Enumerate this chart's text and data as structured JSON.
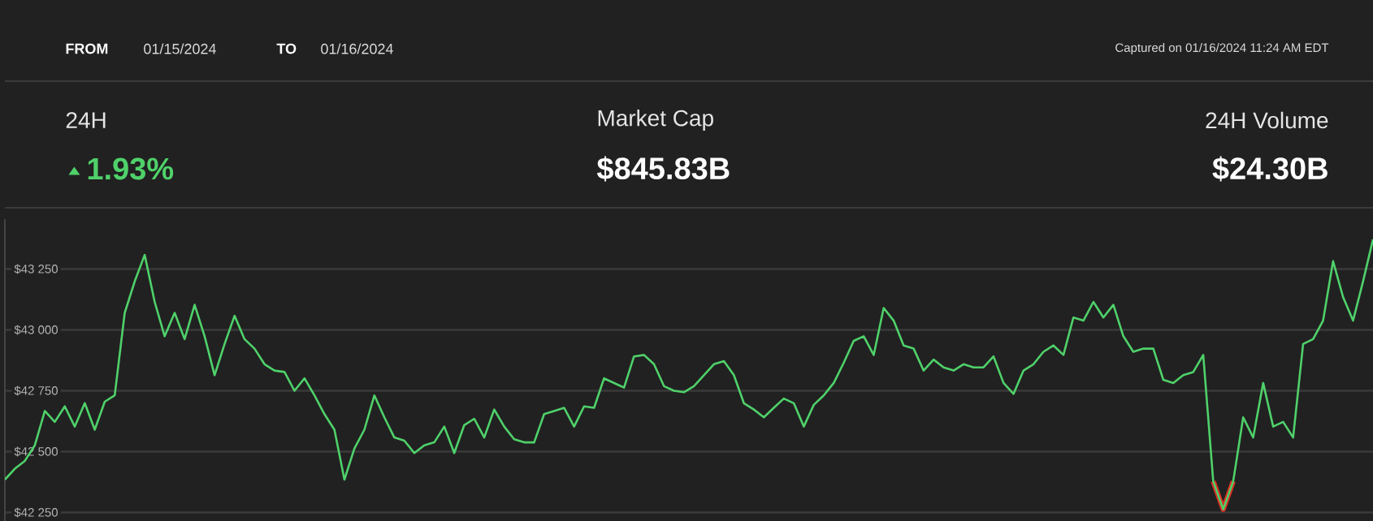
{
  "chart_data": {
    "type": "line",
    "annotations": [
      "FROM",
      "01/15/2024",
      "TO",
      "01/16/2024",
      "Captured on 01/16/2024 11:24 AM EDT",
      "24H",
      "1.93%",
      "Market Cap",
      "$845.83B",
      "24H Volume",
      "$24.30B"
    ],
    "categories": [
      null,
      null,
      null,
      null,
      null,
      null,
      null,
      null,
      null,
      null,
      null,
      null,
      null,
      null,
      null,
      null,
      null,
      null,
      null,
      null,
      null,
      null,
      null,
      null,
      null,
      null,
      null,
      null,
      null,
      null,
      null,
      null,
      null,
      null,
      null,
      null,
      null,
      null,
      null,
      null,
      null,
      null,
      null,
      null,
      null,
      null,
      null,
      null,
      null,
      null,
      null,
      null,
      null,
      null,
      null,
      null,
      null,
      null,
      null,
      null,
      null,
      null,
      null,
      null,
      null,
      null,
      null,
      null,
      null,
      null,
      null,
      null,
      null,
      null,
      null,
      null,
      null,
      null,
      null,
      null,
      null,
      null,
      null,
      null,
      null,
      null,
      null,
      null,
      null,
      null,
      null,
      null,
      null,
      null,
      null,
      null,
      null,
      null,
      null,
      null,
      null,
      null,
      null,
      null,
      null,
      null,
      null,
      null,
      null,
      null,
      null,
      null,
      null,
      null,
      null,
      null,
      null,
      null,
      null,
      null,
      null,
      null,
      null,
      null,
      null,
      null,
      null,
      null,
      null,
      null,
      null,
      null,
      null,
      null,
      null,
      null,
      null,
      null
    ],
    "ylim": [
      42215,
      43455
    ],
    "yticks": [
      {
        "value": 42250,
        "label": "$42 250"
      },
      {
        "value": 42500,
        "label": "$42 500"
      },
      {
        "value": 42750,
        "label": "$42 750"
      },
      {
        "value": 43000,
        "label": "$43 000"
      },
      {
        "value": 43250,
        "label": "$43 250"
      }
    ],
    "grid": "y",
    "tick_labels": "y",
    "series": [
      {
        "color": "#4fd16a",
        "values": [
          42385,
          42430,
          42462,
          42526,
          42667,
          42622,
          42686,
          42603,
          42699,
          42590,
          42705,
          42731,
          43070,
          43199,
          43308,
          43115,
          42974,
          43070,
          42962,
          43103,
          42974,
          42814,
          42942,
          43058,
          42962,
          42923,
          42859,
          42833,
          42827,
          42750,
          42801,
          42731,
          42654,
          42590,
          42385,
          42513,
          42590,
          42731,
          42641,
          42558,
          42545,
          42494,
          42526,
          42538,
          42603,
          42494,
          42609,
          42635,
          42558,
          42673,
          42603,
          42551,
          42538,
          42538,
          42654,
          42667,
          42680,
          42603,
          42686,
          42680,
          42801,
          42782,
          42763,
          42891,
          42897,
          42859,
          42769,
          42750,
          42744,
          42769,
          42814,
          42859,
          42872,
          42814,
          42699,
          42673,
          42641,
          42680,
          42718,
          42699,
          42603,
          42692,
          42731,
          42782,
          42865,
          42955,
          42974,
          42897,
          43090,
          43038,
          42936,
          42923,
          42833,
          42878,
          42846,
          42833,
          42859,
          42846,
          42846,
          42891,
          42782,
          42737,
          42833,
          42859,
          42910,
          42936,
          42897,
          43051,
          43038,
          43115,
          43051,
          43103,
          42974,
          42910,
          42923,
          42923,
          42795,
          42782,
          42814,
          42827,
          42897,
          42378,
          42263,
          42378,
          42641,
          42558,
          42782,
          42603,
          42622,
          42558,
          42942,
          42962,
          43038,
          43282,
          43135,
          43038,
          43199,
          43372
        ]
      },
      {
        "color": "#d93025",
        "values": [
          null,
          null,
          null,
          null,
          null,
          null,
          null,
          null,
          null,
          null,
          null,
          null,
          null,
          null,
          null,
          null,
          null,
          null,
          null,
          null,
          null,
          null,
          null,
          null,
          null,
          null,
          null,
          null,
          null,
          null,
          null,
          null,
          null,
          null,
          null,
          null,
          null,
          null,
          null,
          null,
          null,
          null,
          null,
          null,
          null,
          null,
          null,
          null,
          null,
          null,
          null,
          null,
          null,
          null,
          null,
          null,
          null,
          null,
          null,
          null,
          null,
          null,
          null,
          null,
          null,
          null,
          null,
          null,
          null,
          null,
          null,
          null,
          null,
          null,
          null,
          null,
          null,
          null,
          null,
          null,
          null,
          null,
          null,
          null,
          null,
          null,
          null,
          null,
          null,
          null,
          null,
          null,
          null,
          null,
          null,
          null,
          null,
          null,
          null,
          null,
          null,
          null,
          null,
          null,
          null,
          null,
          null,
          null,
          null,
          null,
          null,
          null,
          null,
          null,
          null,
          null,
          null,
          null,
          null,
          null,
          null,
          42378,
          42263,
          42378,
          null,
          null,
          null,
          null,
          null,
          null,
          null,
          null,
          null,
          null,
          null,
          null,
          null,
          null
        ]
      }
    ]
  }
}
